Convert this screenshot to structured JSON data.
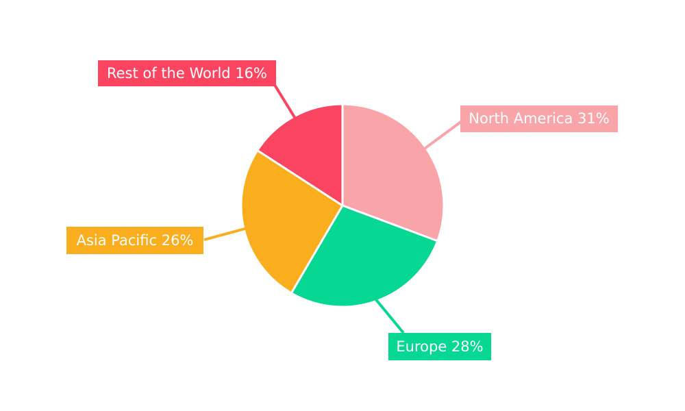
{
  "chart_data": {
    "type": "pie",
    "title": "",
    "background": "#FFFFFF",
    "label_text_color": "#FFFFFF",
    "legend_position": "outside-callouts",
    "start_angle_deg": 0,
    "direction": "clockwise",
    "slices": [
      {
        "id": "north-america",
        "label": "North America",
        "value": 31,
        "display": "North America 31%",
        "color": "#F9A4A9"
      },
      {
        "id": "europe",
        "label": "Europe",
        "value": 28,
        "display": "Europe 28%",
        "color": "#06D793"
      },
      {
        "id": "asia-pacific",
        "label": "Asia Pacific",
        "value": 26,
        "display": "Asia Pacific 26%",
        "color": "#FBAE1D"
      },
      {
        "id": "rest-of-the-world",
        "label": "Rest of the World",
        "value": 16,
        "display": "Rest of the World 16%",
        "color": "#FB4560"
      }
    ]
  }
}
